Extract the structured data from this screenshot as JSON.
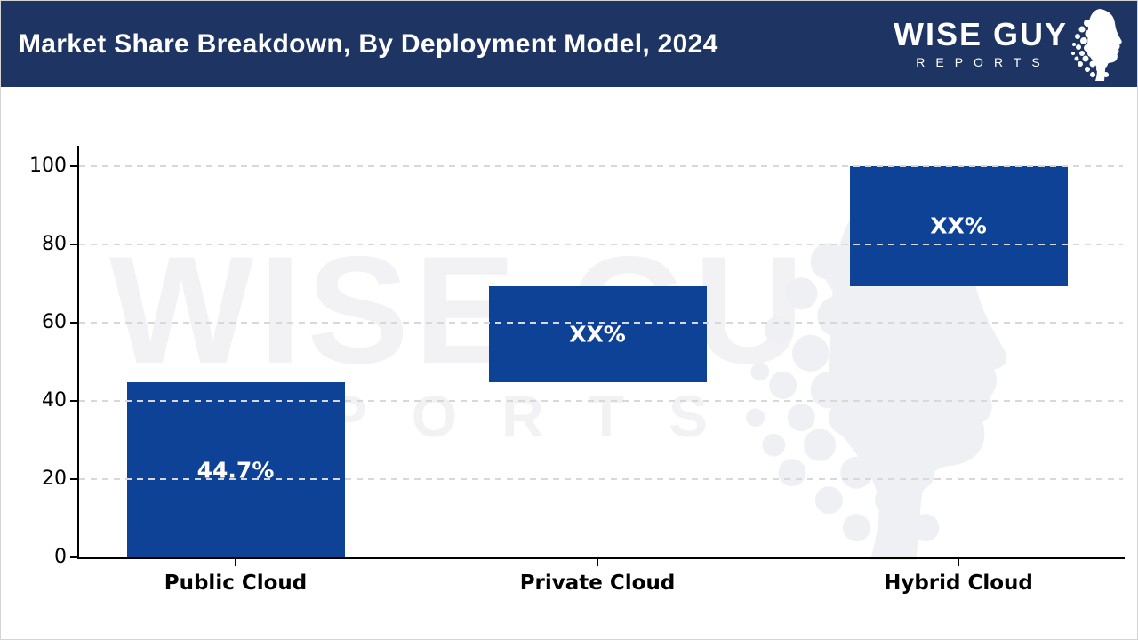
{
  "header": {
    "title": "Market Share Breakdown, By Deployment Model, 2024",
    "bg_color": "#1e3462"
  },
  "logo": {
    "wordmark": "WISE GUY",
    "subtitle": "REPORTS"
  },
  "watermark": {
    "line1": "WISE GUY",
    "line2": "REPORTS"
  },
  "chart_data": {
    "type": "bar",
    "subtype": "floating-segment-waterfall",
    "title": "Market Share Breakdown, By Deployment Model, 2024",
    "categories": [
      "Public Cloud",
      "Private Cloud",
      "Hybrid Cloud"
    ],
    "series": [
      {
        "name": "Public Cloud",
        "start": 0,
        "end": 44.7,
        "label": "44.7%"
      },
      {
        "name": "Private Cloud",
        "start": 44.7,
        "end": 69.4,
        "label": "XX%"
      },
      {
        "name": "Hybrid Cloud",
        "start": 69.4,
        "end": 100,
        "label": "XX%"
      }
    ],
    "bar_color": "#0d4296",
    "value_label_color": "#ffffff",
    "grid": "horizontal dashed, drawn over bars",
    "grid_color": "#d8d8d8",
    "ylim": [
      0,
      100
    ],
    "yticks": [
      0,
      20,
      40,
      60,
      80,
      100
    ],
    "xlabel": "",
    "ylabel": "",
    "legend": "none"
  }
}
